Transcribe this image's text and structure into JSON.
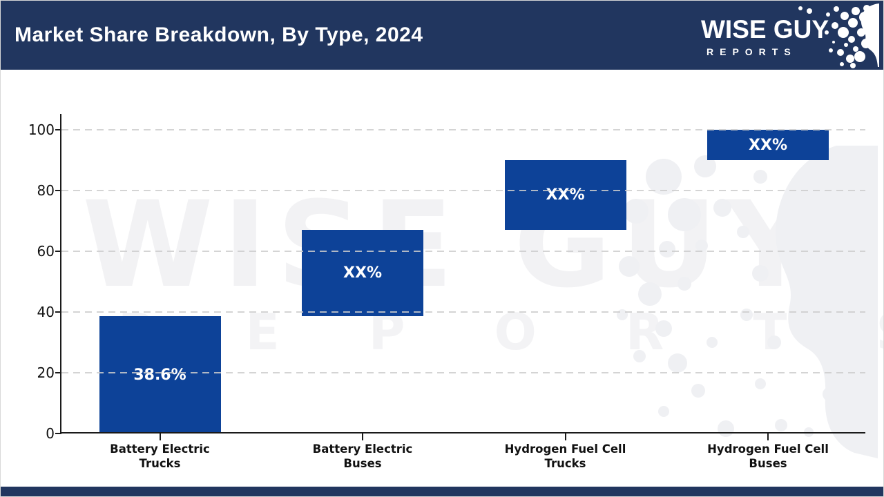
{
  "header": {
    "title": "Market Share Breakdown, By Type, 2024",
    "logo": {
      "line1": "WISE GUY",
      "line2": "R E P O R T S"
    }
  },
  "watermark": {
    "line1": "WISE GUY",
    "line2": "R E P O R T S"
  },
  "colors": {
    "banner_bg": "#21365f",
    "bar_fill": "#0d4298",
    "bar_label_text": "#ffffff",
    "gridline": "#cdcdcd",
    "axis": "#1a1a1a",
    "watermark": "#f2f2f4"
  },
  "chart_data": {
    "type": "bar",
    "variant": "waterfall",
    "title": "Market Share Breakdown, By Type, 2024",
    "xlabel": "",
    "ylabel": "",
    "categories": [
      "Battery Electric Trucks",
      "Battery Electric Buses",
      "Hydrogen Fuel Cell Trucks",
      "Hydrogen Fuel Cell Buses"
    ],
    "series": [
      {
        "name": "Market Share (%)",
        "segments": [
          {
            "start": 0,
            "end": 38.6,
            "label": "38.6%"
          },
          {
            "start": 38.6,
            "end": 67,
            "label": "XX%"
          },
          {
            "start": 67,
            "end": 90,
            "label": "XX%"
          },
          {
            "start": 90,
            "end": 100,
            "label": "XX%"
          }
        ]
      }
    ],
    "ylim": [
      0,
      105
    ],
    "yticks": [
      0,
      20,
      40,
      60,
      80,
      100
    ],
    "grid": "horizontal-dashed",
    "legend": "none"
  }
}
